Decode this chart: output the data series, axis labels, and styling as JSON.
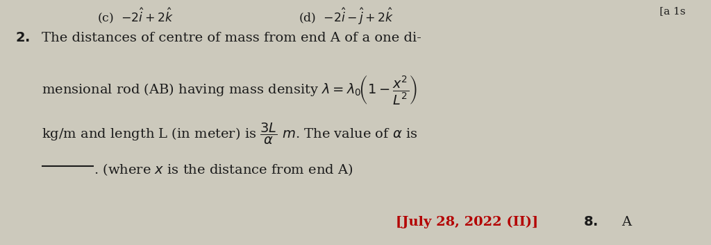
{
  "bg_color": "#ccc9bc",
  "text_color": "#1a1a1a",
  "red_color": "#b30000",
  "fig_width": 10.24,
  "fig_height": 3.54,
  "dpi": 100,
  "top_line_c": "(c)  $-2\\hat{i} + 2\\hat{k}$",
  "top_line_d": "(d)  $-2\\hat{i} - \\hat{j} + 2\\hat{k}$",
  "top_line_right": "[a 1s",
  "q2_line1": "The distances of centre of mass from end A of a one di-",
  "q2_line2": "mensional rod (AB) having mass density $\\lambda = \\lambda_0\\!\\left(1 - \\dfrac{x^2}{L^2}\\right)$",
  "q2_line3": "kg/m and length L (in meter) is $\\dfrac{3L}{\\alpha}$ $m$. The value of $\\alpha$ is",
  "q2_line4_before_blank": "",
  "q2_line4_after_blank": ". (where $x$ is the distance from end A)",
  "july_text": "[July 28, 2022 (II)]",
  "num_text": "8.",
  "ans_text": "A",
  "font_size_main": 14,
  "font_size_top": 12.5
}
